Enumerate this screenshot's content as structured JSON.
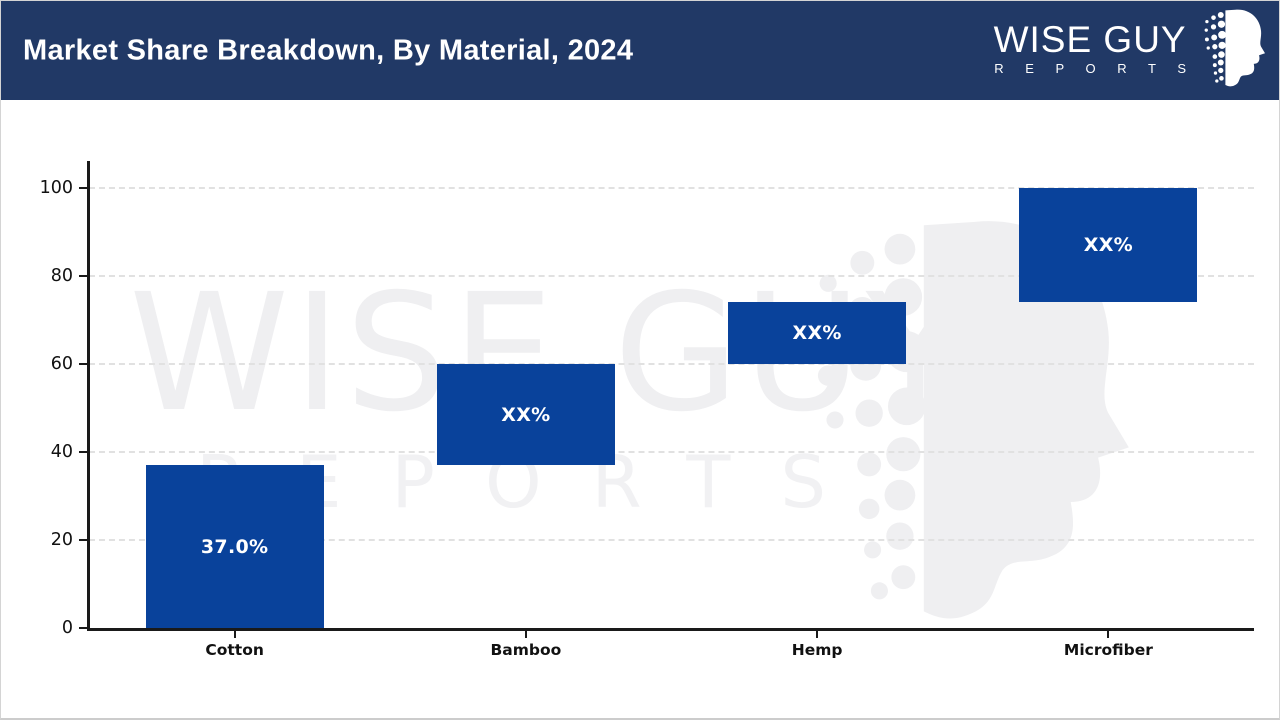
{
  "header": {
    "title": "Market Share Breakdown, By Material, 2024",
    "bg_color": "#213966",
    "logo": {
      "line1": "WISE GUY",
      "line2": "R E P O R T S"
    }
  },
  "watermark": {
    "line1": "WISE GUY",
    "line2": "REPORTS"
  },
  "chart_data": {
    "type": "bar",
    "subtype": "waterfall",
    "title": "Market Share Breakdown, By Material, 2024",
    "categories": [
      "Cotton",
      "Bamboo",
      "Hemp",
      "Microfiber"
    ],
    "segments": [
      {
        "category": "Cotton",
        "start": 0,
        "end": 37,
        "label": "37.0%"
      },
      {
        "category": "Bamboo",
        "start": 37,
        "end": 60,
        "label": "XX%"
      },
      {
        "category": "Hemp",
        "start": 60,
        "end": 74,
        "label": "XX%"
      },
      {
        "category": "Microfiber",
        "start": 74,
        "end": 100,
        "label": "XX%"
      }
    ],
    "xlabel": "",
    "ylabel": "",
    "ylim": [
      0,
      100
    ],
    "yticks": [
      0,
      20,
      40,
      60,
      80,
      100
    ],
    "grid": "horizontal-dashed",
    "legend": "none",
    "bar_color": "#09429b",
    "bar_label_color": "#ffffff",
    "axis_color": "#1a1a1a",
    "grid_color": "#e1e1e1"
  }
}
